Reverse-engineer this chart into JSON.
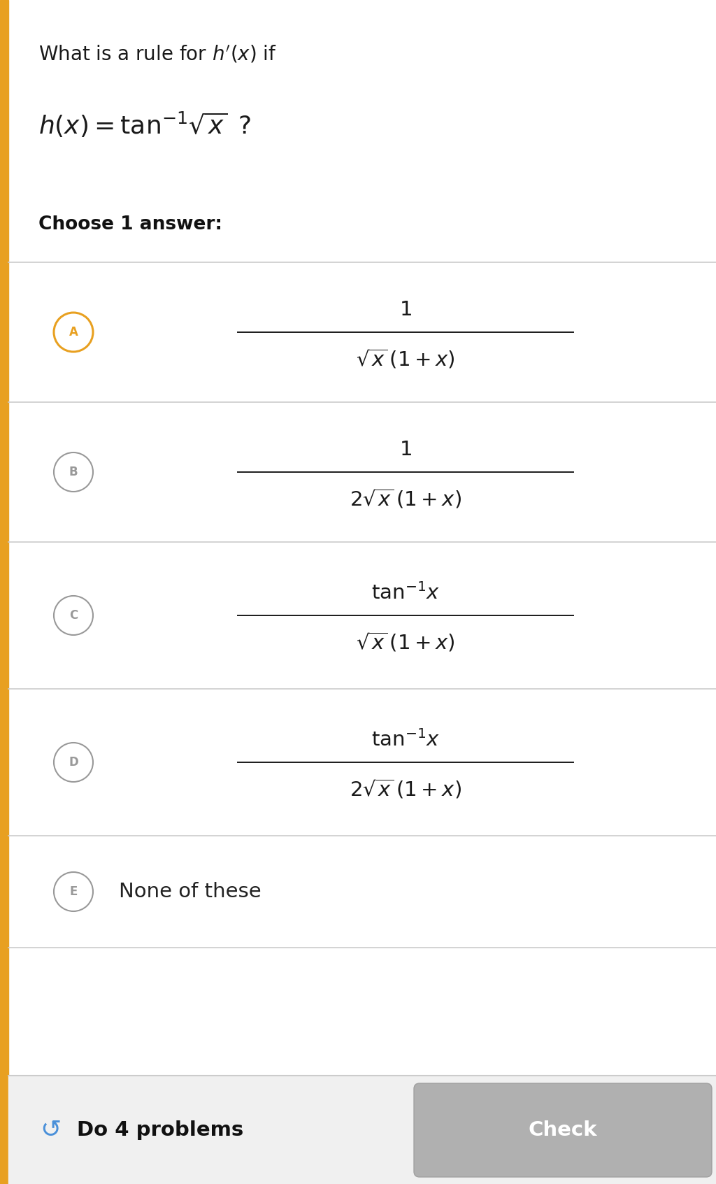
{
  "bg_color": "#ffffff",
  "border_color": "#e8a020",
  "question_line1": "What is a rule for $\\mathit{h}'(\\mathit{x})$ if",
  "question_line2": "$\\mathit{h}(\\mathit{x}) = \\tan^{-1}\\!\\sqrt{\\mathit{x}}\\,$ ?",
  "choose_text": "Choose 1 answer:",
  "options": [
    {
      "label": "A",
      "formula_num": "1",
      "formula_den": "\\sqrt{x}\\,(1+x)",
      "is_fraction": true
    },
    {
      "label": "B",
      "formula_num": "1",
      "formula_den": "2\\sqrt{x}\\,(1+x)",
      "is_fraction": true
    },
    {
      "label": "C",
      "formula_num": "\\tan^{-1}\\!x",
      "formula_den": "\\sqrt{x}\\,(1+x)",
      "is_fraction": true
    },
    {
      "label": "D",
      "formula_num": "\\tan^{-1}\\!x",
      "formula_den": "2\\sqrt{x}\\,(1+x)",
      "is_fraction": true
    },
    {
      "label": "E",
      "text": "None of these",
      "is_fraction": false
    }
  ],
  "footer_text": "Do 4 problems",
  "check_text": "Check",
  "circle_color": "#999999",
  "circle_A_color": "#e8a020",
  "divider_color": "#cccccc",
  "footer_bg": "#d0d0d0",
  "refresh_color": "#4a90d9",
  "border_width": 0.12,
  "fig_width": 10.24,
  "fig_height": 16.93
}
